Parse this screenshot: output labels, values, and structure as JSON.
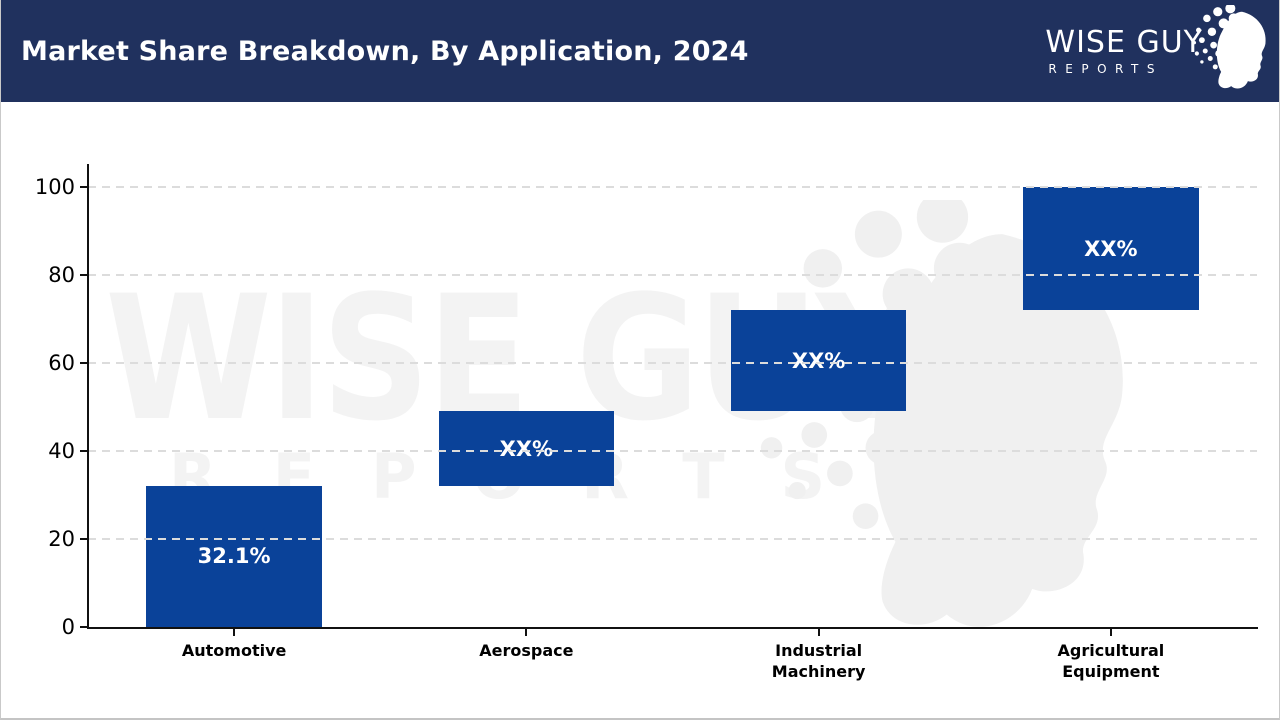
{
  "header": {
    "title": "Market Share Breakdown, By Application, 2024",
    "brand": {
      "name": "WISE GUY",
      "sub": "REPORTS"
    }
  },
  "watermark": {
    "brand": "WISE GUY",
    "sub": "REPORTS"
  },
  "chart_data": {
    "type": "bar",
    "subtype": "waterfall",
    "title": "Market Share Breakdown, By Application, 2024",
    "unit": "%",
    "categories": [
      "Automotive",
      "Aerospace",
      "Industrial\nMachinery",
      "Agricultural\nEquipment"
    ],
    "segments": [
      {
        "category": "Automotive",
        "start": 0,
        "end": 32.1,
        "label": "32.1%"
      },
      {
        "category": "Aerospace",
        "start": 32.1,
        "end": 49,
        "label": "XX%"
      },
      {
        "category": "Industrial Machinery",
        "start": 49,
        "end": 72,
        "label": "XX%"
      },
      {
        "category": "Agricultural Equipment",
        "start": 72,
        "end": 100,
        "label": "XX%"
      }
    ],
    "yticks": [
      0,
      20,
      40,
      60,
      80,
      100
    ],
    "ylim": [
      0,
      100
    ],
    "grid": "horizontal-dashed",
    "legend": "none",
    "bar_color": "#0a4299",
    "bar_label_color": "#ffffff"
  },
  "colors": {
    "header_bg": "#20315e",
    "bar": "#0a4299",
    "grid": "#dcdcdc",
    "axis": "#000000",
    "watermark": "#f2f2f2"
  }
}
